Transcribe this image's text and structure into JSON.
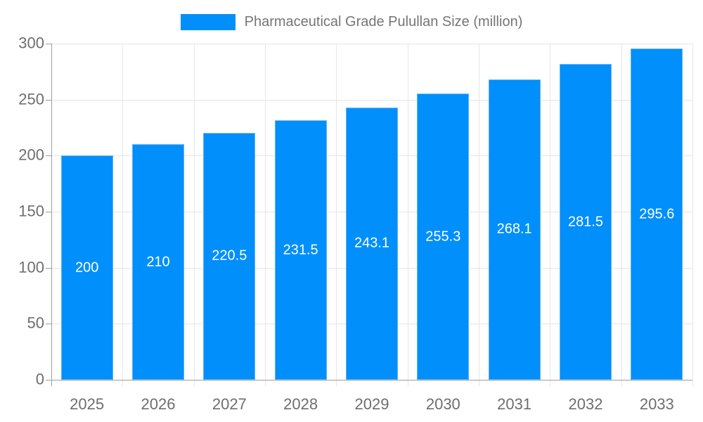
{
  "chart_data": {
    "type": "bar",
    "title": "Pharmaceutical Grade Pulullan Size (million)",
    "legend": [
      "Pharmaceutical Grade Pulullan Size (million)"
    ],
    "legend_position": "top",
    "categories": [
      "2025",
      "2026",
      "2027",
      "2028",
      "2029",
      "2030",
      "2031",
      "2032",
      "2033"
    ],
    "values": [
      200,
      210,
      220.5,
      231.5,
      243.1,
      255.3,
      268.1,
      281.5,
      295.6
    ],
    "value_labels": [
      "200",
      "210",
      "220.5",
      "231.5",
      "243.1",
      "255.3",
      "268.1",
      "281.5",
      "295.6"
    ],
    "xlabel": "",
    "ylabel": "",
    "ylim": [
      0,
      300
    ],
    "ytick_step": 50,
    "yticks": [
      "0",
      "50",
      "100",
      "150",
      "200",
      "250",
      "300"
    ],
    "grid": true,
    "colors": {
      "bar": "#008ffb",
      "bar_edge": "#5eb3fc",
      "value_text": "#ffffff",
      "axis_text": "#6e6e6e",
      "legend_text": "#757575",
      "grid_line": "#e6e6e6",
      "axis_line": "#9e9e9e",
      "background": "#ffffff"
    }
  }
}
